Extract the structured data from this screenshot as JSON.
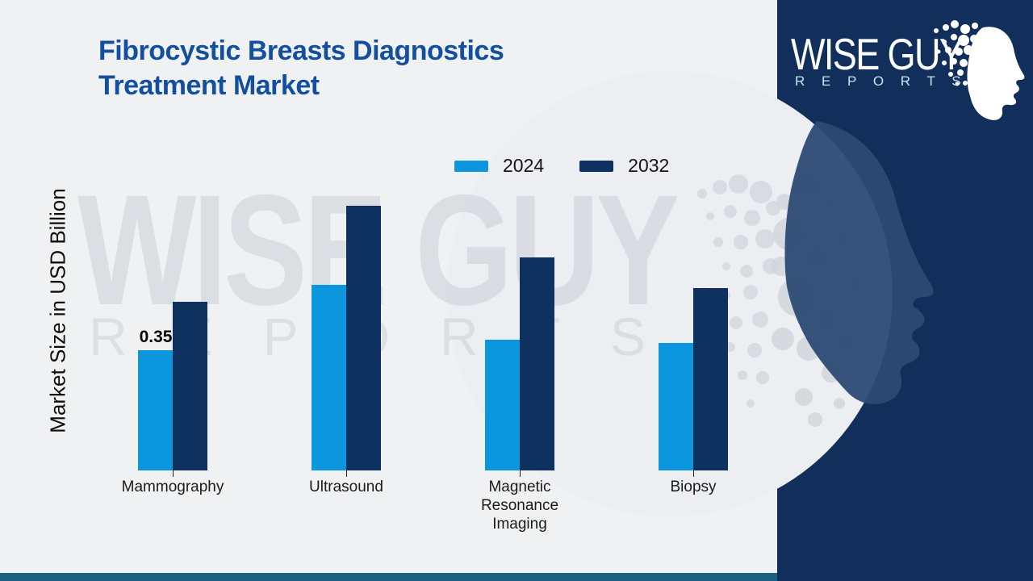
{
  "title": {
    "line1": "Fibrocystic Breasts Diagnostics",
    "line2": "Treatment Market"
  },
  "y_axis_label": "Market Size in USD Billion",
  "watermark": {
    "line1": "WISE GUY",
    "line2": "REPORTS"
  },
  "logo": {
    "line1": "WISE GUY",
    "line2": "R E P O R T S"
  },
  "colors": {
    "background": "#f0f1f2",
    "title_blue": "#134f9f",
    "bar_2024": "#0b96dd",
    "bar_2032": "#0e3160",
    "panel_navy": "#122f5c",
    "bottom_accent_teal": "#1a607f",
    "watermark_gray": "#c9ced6",
    "brand_circle": "#eceef1",
    "face_silhouette": "#2d4a74"
  },
  "chart_data": {
    "type": "bar",
    "title": "Fibrocystic Breasts Diagnostics Treatment Market",
    "ylabel": "Market Size in USD Billion",
    "xlabel": "",
    "categories": [
      "Mammography",
      "Ultrasound",
      "Magnetic Resonance Imaging",
      "Biopsy"
    ],
    "series": [
      {
        "name": "2024",
        "color": "#0b96dd",
        "values": [
          0.35,
          0.54,
          0.38,
          0.37
        ]
      },
      {
        "name": "2032",
        "color": "#0e3160",
        "values": [
          0.49,
          0.77,
          0.62,
          0.53
        ]
      }
    ],
    "ylim": [
      0,
      0.8
    ],
    "grid": false,
    "legend_position": "top-center",
    "annotations": [
      {
        "series": "2024",
        "category": "Mammography",
        "text": "0.35"
      }
    ]
  }
}
